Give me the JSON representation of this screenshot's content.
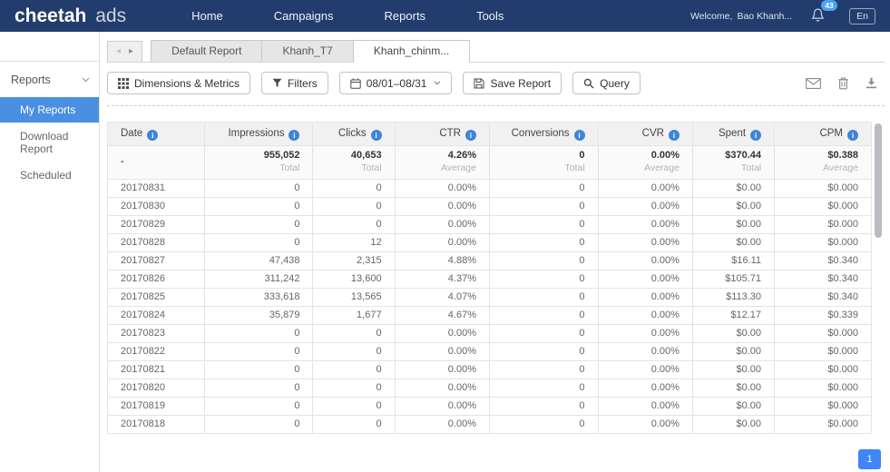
{
  "topnav": {
    "brand_bold": "cheetah",
    "brand_light": "ads",
    "nav_items": [
      {
        "label": "Home"
      },
      {
        "label": "Campaigns"
      },
      {
        "label": "Reports"
      },
      {
        "label": "Tools"
      }
    ],
    "welcome_text": "Welcome,",
    "user_name": "Bao Khanh...",
    "notification_count": "43",
    "language_label": "En"
  },
  "sidebar": {
    "section_label": "Reports",
    "items": [
      {
        "label": "My Reports",
        "active": true
      },
      {
        "label": "Download Report",
        "active": false
      },
      {
        "label": "Scheduled",
        "active": false
      }
    ]
  },
  "tabs": {
    "items": [
      {
        "label": "Default Report",
        "active": false
      },
      {
        "label": "Khanh_T7",
        "active": false
      },
      {
        "label": "Khanh_chinm...",
        "active": true
      }
    ]
  },
  "toolbar": {
    "dimensions_metrics_label": "Dimensions & Metrics",
    "filters_label": "Filters",
    "date_range_label": "08/01–08/31",
    "save_report_label": "Save Report",
    "query_label": "Query"
  },
  "table": {
    "columns": [
      {
        "label": "Date",
        "align": "left"
      },
      {
        "label": "Impressions",
        "align": "right"
      },
      {
        "label": "Clicks",
        "align": "right"
      },
      {
        "label": "CTR",
        "align": "right"
      },
      {
        "label": "Conversions",
        "align": "right"
      },
      {
        "label": "CVR",
        "align": "right"
      },
      {
        "label": "Spent",
        "align": "right"
      },
      {
        "label": "CPM",
        "align": "right"
      }
    ],
    "totals_row": {
      "date": "-",
      "cells": [
        {
          "value": "955,052",
          "sub": "Total"
        },
        {
          "value": "40,653",
          "sub": "Total"
        },
        {
          "value": "4.26%",
          "sub": "Average"
        },
        {
          "value": "0",
          "sub": "Total"
        },
        {
          "value": "0.00%",
          "sub": "Average"
        },
        {
          "value": "$370.44",
          "sub": "Total"
        },
        {
          "value": "$0.388",
          "sub": "Average"
        }
      ]
    },
    "rows": [
      [
        "20170831",
        "0",
        "0",
        "0.00%",
        "0",
        "0.00%",
        "$0.00",
        "$0.000"
      ],
      [
        "20170830",
        "0",
        "0",
        "0.00%",
        "0",
        "0.00%",
        "$0.00",
        "$0.000"
      ],
      [
        "20170829",
        "0",
        "0",
        "0.00%",
        "0",
        "0.00%",
        "$0.00",
        "$0.000"
      ],
      [
        "20170828",
        "0",
        "12",
        "0.00%",
        "0",
        "0.00%",
        "$0.00",
        "$0.000"
      ],
      [
        "20170827",
        "47,438",
        "2,315",
        "4.88%",
        "0",
        "0.00%",
        "$16.11",
        "$0.340"
      ],
      [
        "20170826",
        "311,242",
        "13,600",
        "4.37%",
        "0",
        "0.00%",
        "$105.71",
        "$0.340"
      ],
      [
        "20170825",
        "333,618",
        "13,565",
        "4.07%",
        "0",
        "0.00%",
        "$113.30",
        "$0.340"
      ],
      [
        "20170824",
        "35,879",
        "1,677",
        "4.67%",
        "0",
        "0.00%",
        "$12.17",
        "$0.339"
      ],
      [
        "20170823",
        "0",
        "0",
        "0.00%",
        "0",
        "0.00%",
        "$0.00",
        "$0.000"
      ],
      [
        "20170822",
        "0",
        "0",
        "0.00%",
        "0",
        "0.00%",
        "$0.00",
        "$0.000"
      ],
      [
        "20170821",
        "0",
        "0",
        "0.00%",
        "0",
        "0.00%",
        "$0.00",
        "$0.000"
      ],
      [
        "20170820",
        "0",
        "0",
        "0.00%",
        "0",
        "0.00%",
        "$0.00",
        "$0.000"
      ],
      [
        "20170819",
        "0",
        "0",
        "0.00%",
        "0",
        "0.00%",
        "$0.00",
        "$0.000"
      ],
      [
        "20170818",
        "0",
        "0",
        "0.00%",
        "0",
        "0.00%",
        "$0.00",
        "$0.000"
      ]
    ],
    "column_widths_pct": [
      12.7,
      14.2,
      10.7,
      12.4,
      14.2,
      12.4,
      10.7,
      12.7
    ]
  },
  "pagination": {
    "page": "1"
  },
  "colors": {
    "topnav_bg": "#223d6d",
    "sidebar_active_bg": "#4a90e2",
    "info_icon": "#3d85d8",
    "pagination_bg": "#4285f4",
    "badge_bg": "#4da3f0"
  }
}
